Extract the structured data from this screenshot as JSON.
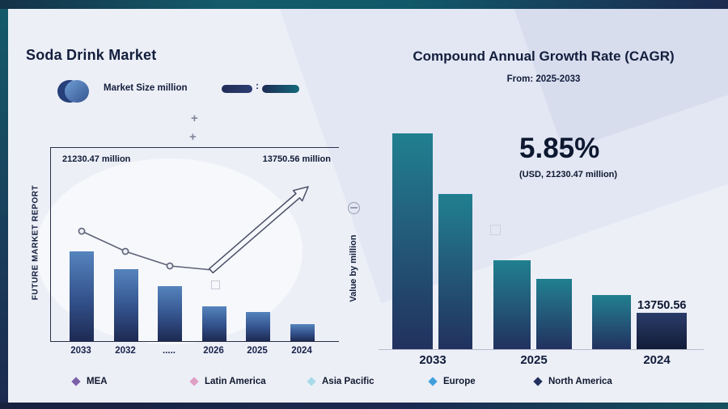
{
  "left": {
    "title": "Soda Drink Market",
    "legend_label": "Market Size million",
    "side_label": "FUTURE MARKET REPORT",
    "annotation_left": "21230.47 million",
    "annotation_right": "13750.56 million"
  },
  "right": {
    "title": "Compound Annual Growth Rate (CAGR)",
    "subtitle": "From: 2025-2033",
    "cagr": "5.85%",
    "cagr_detail": "(USD, 21230.47 million)",
    "ylabel": "Value by million",
    "bar_label": "13750.56"
  },
  "legend": {
    "items": [
      {
        "label": "MEA",
        "color": "#7b5fa8"
      },
      {
        "label": "Latin America",
        "color": "#df9ec6"
      },
      {
        "label": "Asia Pacific",
        "color": "#a7dbe8"
      },
      {
        "label": "Europe",
        "color": "#41a0dc"
      },
      {
        "label": "North America",
        "color": "#232f5e"
      }
    ]
  },
  "chart_data": [
    {
      "id": "market_size",
      "type": "bar",
      "title": "Soda Drink Market — Market Size million",
      "categories": [
        "2033",
        "2032",
        ".....",
        "2026",
        "2025",
        "2024"
      ],
      "values": [
        21230.47,
        19400,
        17700,
        15600,
        15000,
        13750.56
      ],
      "ylim": [
        12000,
        22000
      ],
      "annotations": [
        "21230.47 million",
        "13750.56 million"
      ],
      "trend_note": "marker line declines from 2033 to 2026 then arrow rises to top right"
    },
    {
      "id": "cagr",
      "type": "bar",
      "title": "Compound Annual Growth Rate (CAGR) From: 2025-2033",
      "categories": [
        "2033",
        "2025",
        "2024"
      ],
      "series": [
        {
          "name": "series-1",
          "relative_heights": [
            267,
            110,
            67
          ]
        },
        {
          "name": "series-2",
          "relative_heights": [
            192,
            87,
            45
          ]
        }
      ],
      "ylabel": "Value by million",
      "data_label": "13750.56",
      "cagr_value": "5.85%"
    }
  ]
}
